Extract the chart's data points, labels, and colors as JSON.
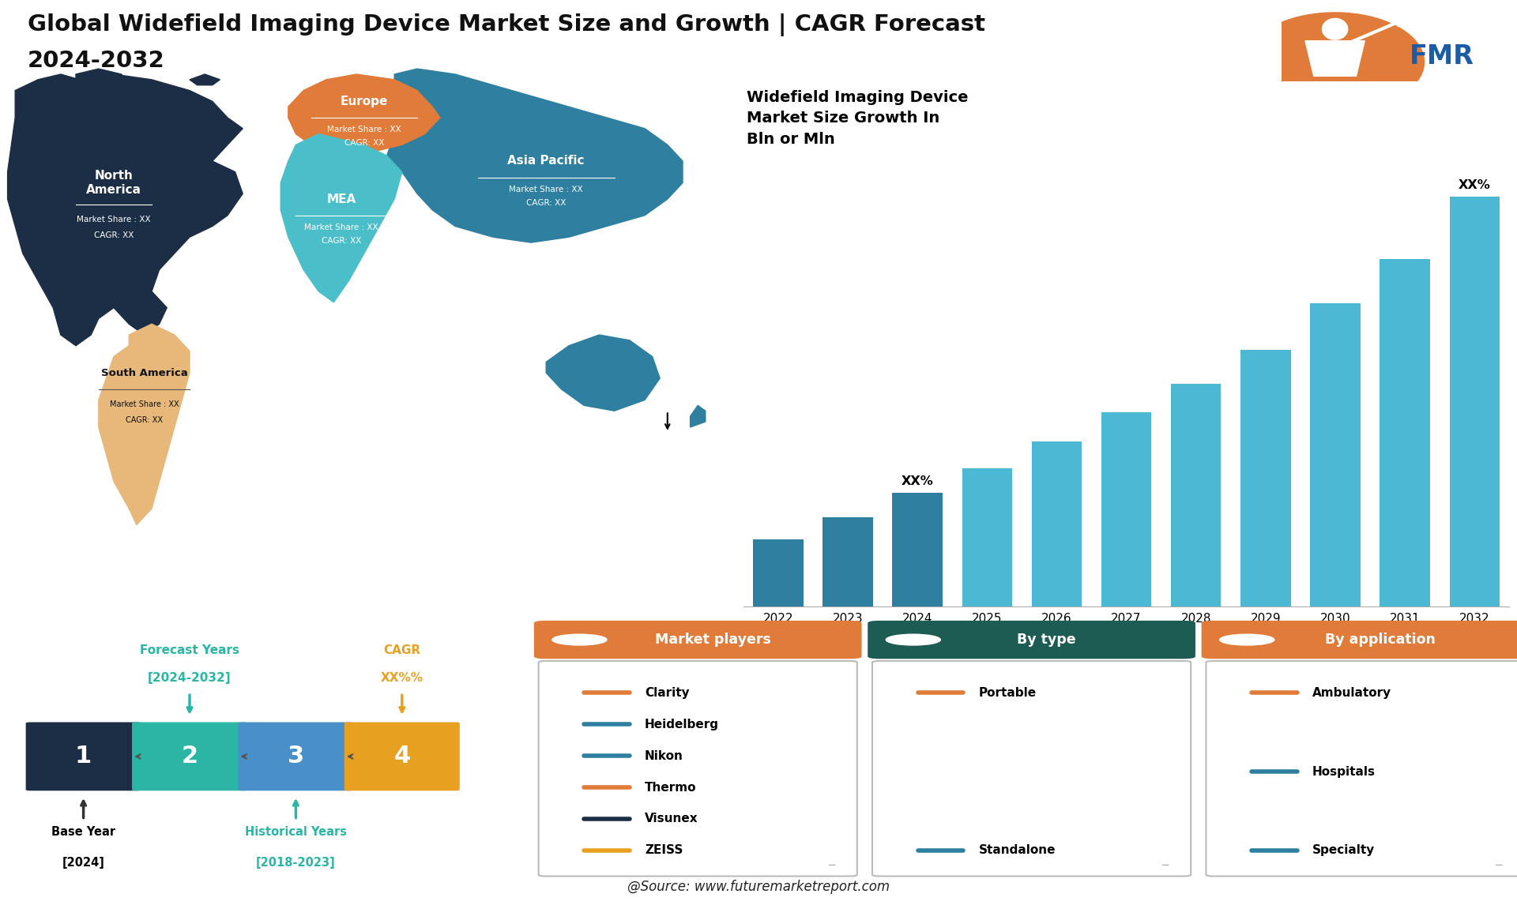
{
  "title_line1": "Global Widefield Imaging Device Market Size and Growth | CAGR Forecast",
  "title_line2": "2024-2032",
  "title_fontsize": 21,
  "bg_color": "#ffffff",
  "bar_chart_title": "Widefield Imaging Device\nMarket Size Growth In\nBln or Mln",
  "bar_years": [
    "2022",
    "2023",
    "2024",
    "2025",
    "2026",
    "2027",
    "2028",
    "2029",
    "2030",
    "2031",
    "2032"
  ],
  "bar_values": [
    1.5,
    2.0,
    2.55,
    3.1,
    3.7,
    4.35,
    5.0,
    5.75,
    6.8,
    7.8,
    9.2
  ],
  "bar_colors": [
    "#2e7fa0",
    "#2e7fa0",
    "#2e7fa0",
    "#4db8d4",
    "#4db8d4",
    "#4db8d4",
    "#4db8d4",
    "#4db8d4",
    "#4db8d4",
    "#4db8d4",
    "#4db8d4"
  ],
  "bar_annot_idx_low": 2,
  "bar_annot_idx_high": 10,
  "bar_annot_text": "XX%",
  "na_color": "#1b2e45",
  "sa_color": "#e8b87a",
  "eu_color": "#e07b39",
  "mea_color": "#4bbfc9",
  "ap_color": "#2e7fa0",
  "bottom_segments": [
    {
      "num": "1",
      "color": "#1b2e45"
    },
    {
      "num": "2",
      "color": "#2ab5a5"
    },
    {
      "num": "3",
      "color": "#4a90c8"
    },
    {
      "num": "4",
      "color": "#e8a020"
    }
  ],
  "forecast_color": "#2ab5a5",
  "cagr_color": "#e8a020",
  "historical_color": "#2ab5a5",
  "categories": [
    {
      "title": "Market players",
      "header_color": "#e07b39",
      "items": [
        "Clarity",
        "Heidelberg",
        "Nikon",
        "Thermo",
        "Visunex",
        "ZEISS"
      ],
      "item_colors": [
        "#e07b39",
        "#2e7fa0",
        "#2e7fa0",
        "#e07b39",
        "#1b2e45",
        "#e8a020"
      ]
    },
    {
      "title": "By type",
      "header_color": "#1d5c52",
      "items": [
        "Portable",
        "Standalone"
      ],
      "item_colors": [
        "#e07b39",
        "#2e7fa0"
      ]
    },
    {
      "title": "By application",
      "header_color": "#e07b39",
      "items": [
        "Ambulatory",
        "Hospitals",
        "Specialty"
      ],
      "item_colors": [
        "#e07b39",
        "#2e7fa0",
        "#2e7fa0"
      ]
    }
  ],
  "source_text": "@Source: www.futuremarketreport.com",
  "fmr_color": "#1a5ca8"
}
